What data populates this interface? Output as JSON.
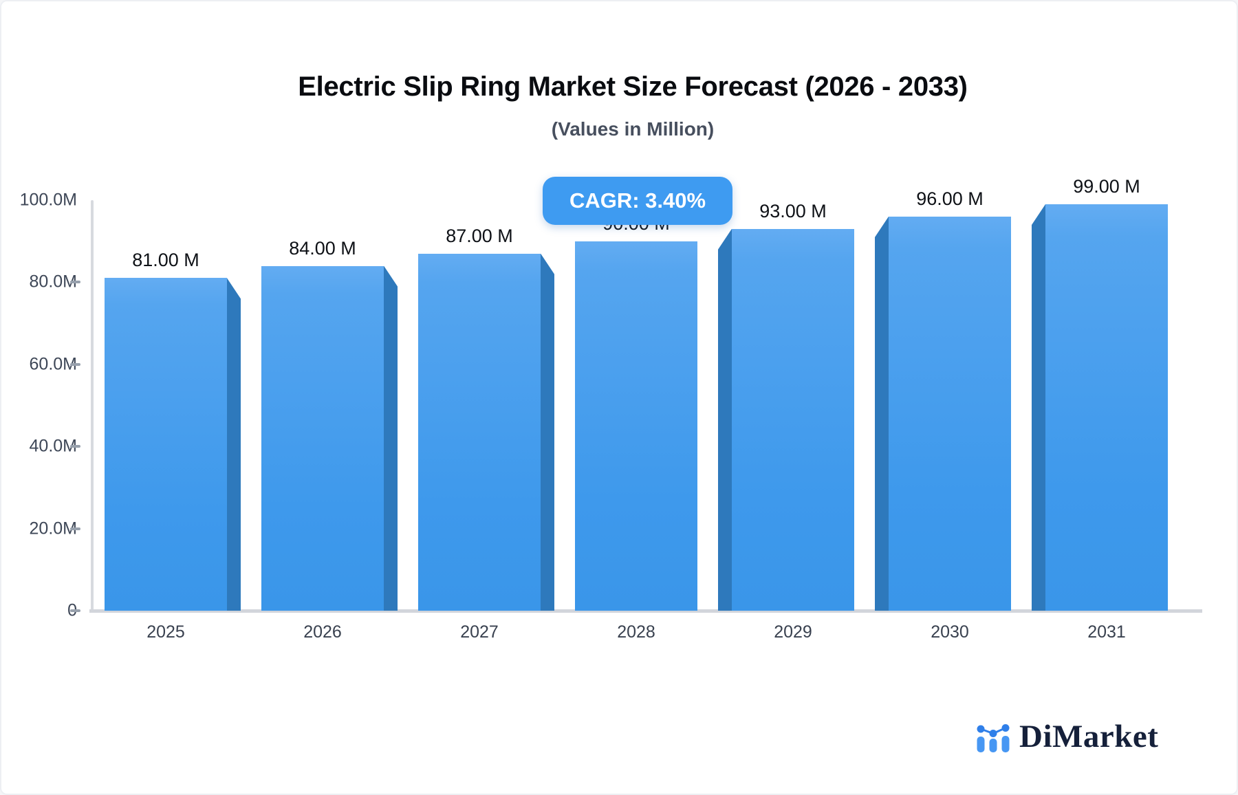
{
  "header": {
    "title": "Electric Slip Ring Market Size Forecast (2026 - 2033)",
    "subtitle": "(Values in Million)"
  },
  "badge": {
    "label": "CAGR: 3.40%",
    "bg": "#3e9bf1"
  },
  "chart_data": {
    "type": "bar",
    "title": "Electric Slip Ring Market Size Forecast (2026 - 2033)",
    "subtitle": "(Values in Million)",
    "categories": [
      "2025",
      "2026",
      "2027",
      "2028",
      "2029",
      "2030",
      "2031"
    ],
    "values": [
      81,
      84,
      87,
      90,
      93,
      96,
      99
    ],
    "value_labels": [
      "81.00 M",
      "84.00 M",
      "87.00 M",
      "90.00 M",
      "93.00 M",
      "96.00 M",
      "99.00 M"
    ],
    "unit": "Million",
    "ylim": [
      0,
      100
    ],
    "yticks": [
      {
        "value": 100,
        "label": "100.0M",
        "dash": false
      },
      {
        "value": 80,
        "label": "80.0M",
        "dash": true
      },
      {
        "value": 60,
        "label": "60.0M",
        "dash": true
      },
      {
        "value": 40,
        "label": "40.0M",
        "dash": true
      },
      {
        "value": 20,
        "label": "20.0M",
        "dash": true
      },
      {
        "value": 0,
        "label": "0",
        "dash": true
      }
    ],
    "grid": false,
    "legend": false,
    "annotation": "CAGR: 3.40%",
    "bar_front_top_color": "#5fabf2",
    "bar_front_bottom_color": "#3b97ea",
    "bar_side_color": "#2e79bc"
  },
  "logo": {
    "text": "DiMarket",
    "icon": "bar-chart-logo-icon",
    "bar_color": "#4797f3",
    "dot_color": "#2f7fe9",
    "text_color": "#15203a"
  }
}
